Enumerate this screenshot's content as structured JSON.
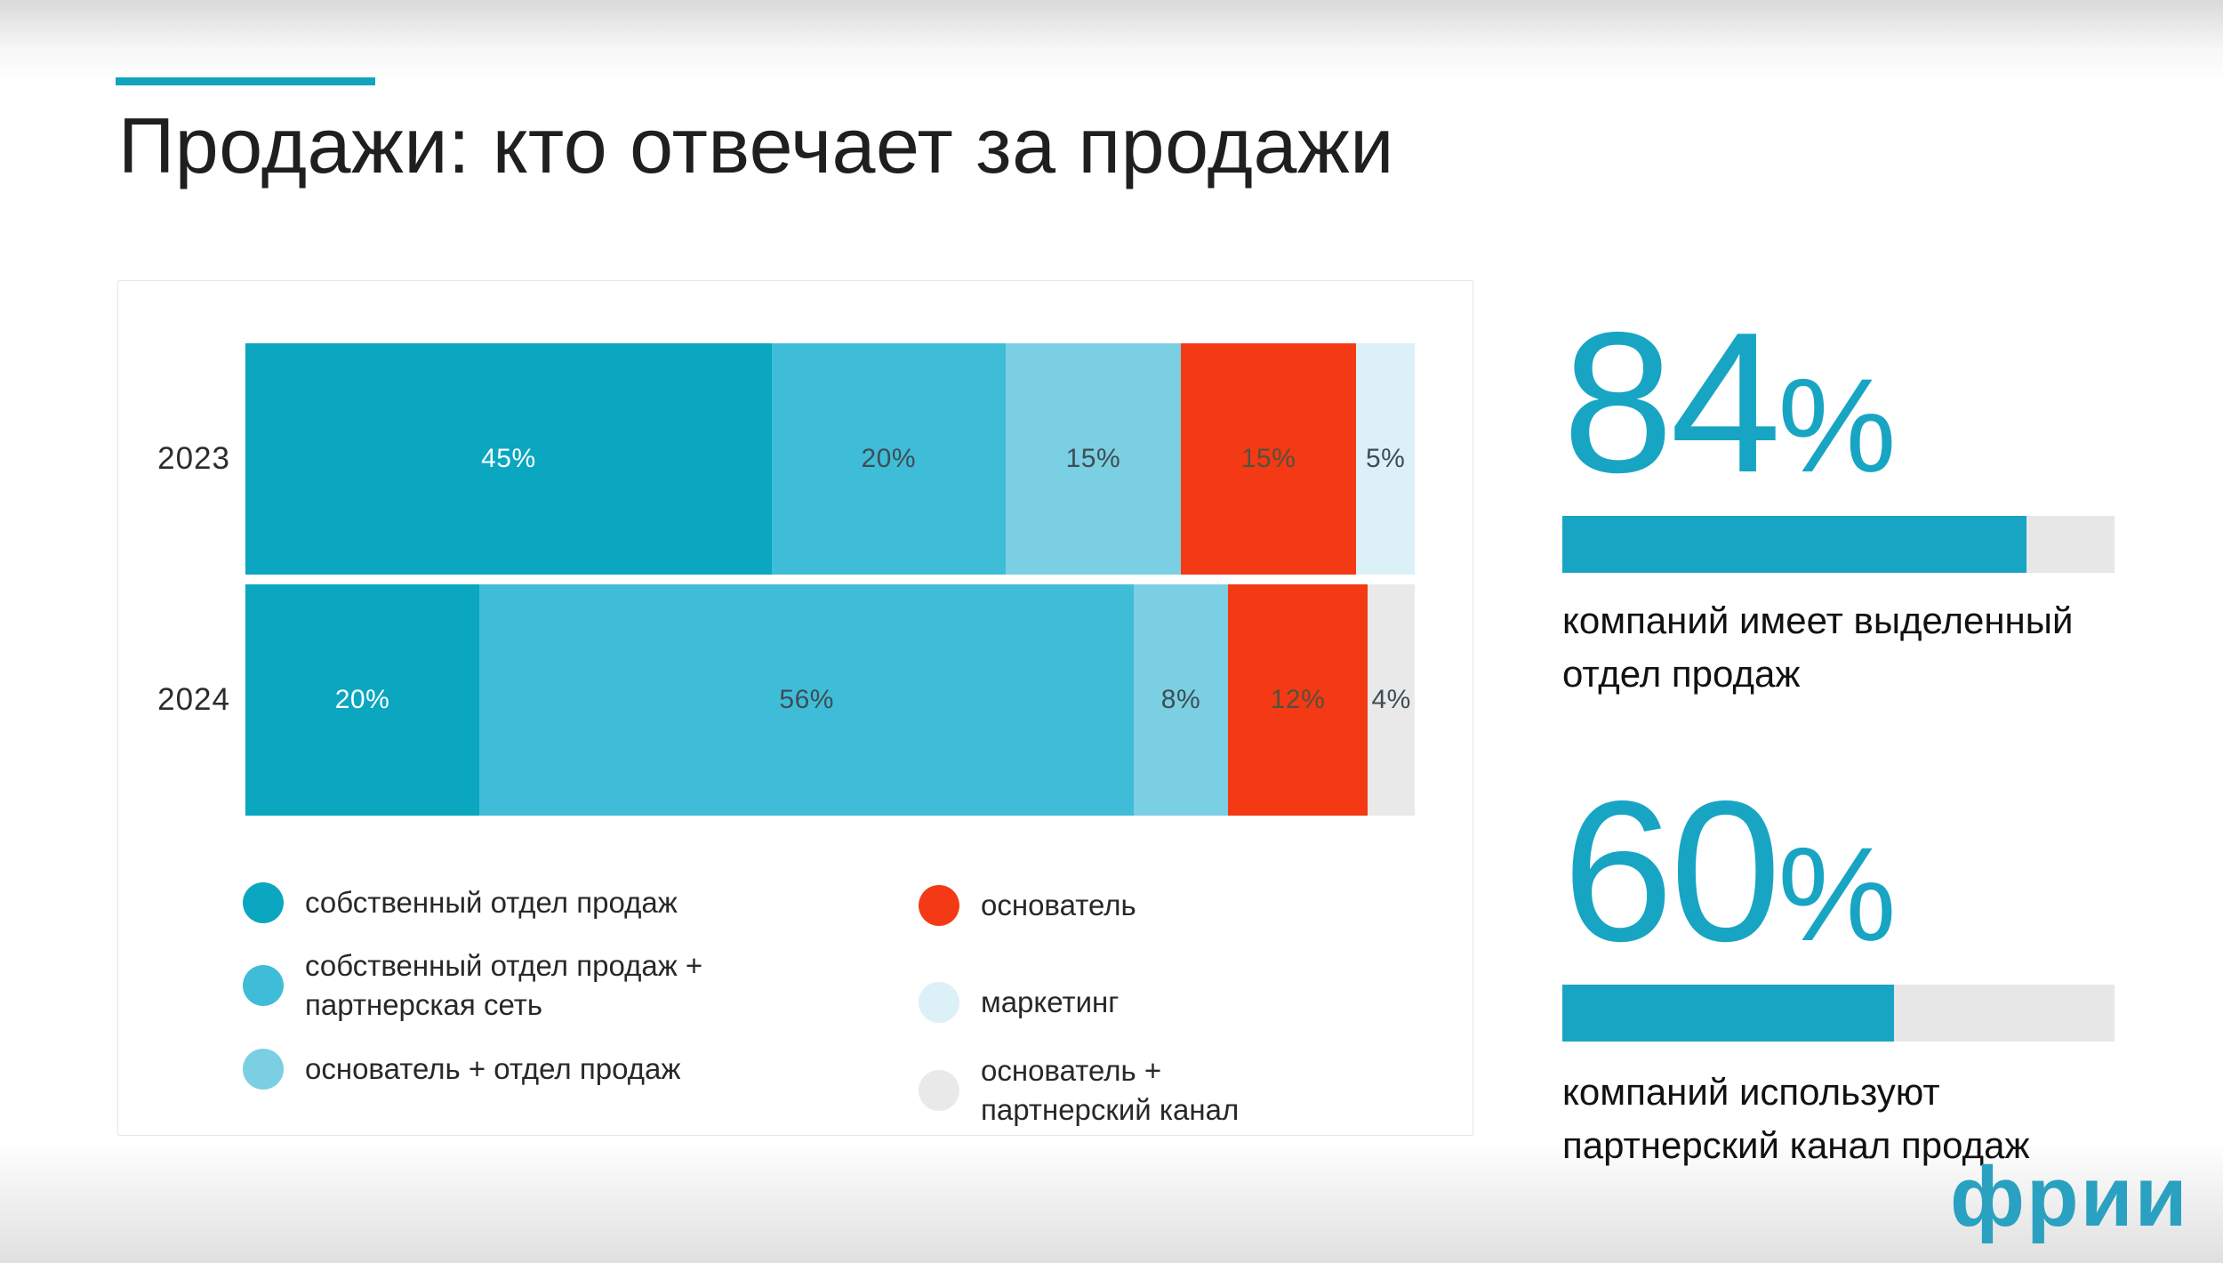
{
  "slide": {
    "title": "Продажи: кто отвечает за продажи",
    "logo": "фрии"
  },
  "colors": {
    "accent": "#12a3c0",
    "stat_teal": "#18a5c4",
    "track_gray": "#e7e7e7",
    "logo_teal": "#2ba1c1",
    "title_text": "#1f1f1f"
  },
  "chart_data": {
    "type": "bar",
    "stacked": true,
    "orientation": "horizontal",
    "unit": "%",
    "xlim": [
      0,
      100
    ],
    "grid": false,
    "legend_position": "bottom",
    "categories": [
      "2023",
      "2024"
    ],
    "series": [
      {
        "name": "собственный отдел продаж",
        "color": "#0ba6c0",
        "label_color": "#ffffff",
        "values": [
          45,
          20
        ]
      },
      {
        "name": "собственный отдел продаж + партнерская сеть",
        "color": "#3fbdd8",
        "label_color": "#3e4d55",
        "values": [
          20,
          56
        ]
      },
      {
        "name": "основатель + отдел продаж",
        "color": "#7bcfe2",
        "label_color": "#3e4d55",
        "values": [
          15,
          8
        ]
      },
      {
        "name": "основатель",
        "color": "#f33a14",
        "label_color": "#55503f",
        "values": [
          15,
          12
        ]
      },
      {
        "name": "маркетинг",
        "color": "#dcf0f7",
        "label_color": "#3e4d55",
        "values": [
          5,
          0
        ]
      },
      {
        "name": "основатель + партнерский канал",
        "color": "#e9e9e9",
        "label_color": "#3e4d55",
        "values": [
          0,
          4
        ]
      }
    ]
  },
  "legend": {
    "column1": [
      {
        "color": "#0ba6c0",
        "lines": [
          "собственный отдел продаж"
        ]
      },
      {
        "color": "#3fbdd8",
        "lines": [
          "собственный отдел продаж +",
          "партнерская сеть"
        ]
      },
      {
        "color": "#7bcfe2",
        "lines": [
          "основатель + отдел продаж"
        ]
      }
    ],
    "column2": [
      {
        "color": "#f33a14",
        "lines": [
          "основатель"
        ]
      },
      {
        "color": "#dcf0f7",
        "lines": [
          "маркетинг"
        ]
      },
      {
        "color": "#e9e9e9",
        "lines": [
          "основатель +",
          "партнерский канал"
        ]
      }
    ]
  },
  "stats": [
    {
      "value": "84",
      "suffix": "%",
      "bar_percent": 84,
      "caption_lines": [
        "компаний имеет выделенный",
        "отдел продаж"
      ]
    },
    {
      "value": "60",
      "suffix": "%",
      "bar_percent": 60,
      "caption_lines": [
        "компаний используют",
        "партнерский канал продаж"
      ]
    }
  ]
}
